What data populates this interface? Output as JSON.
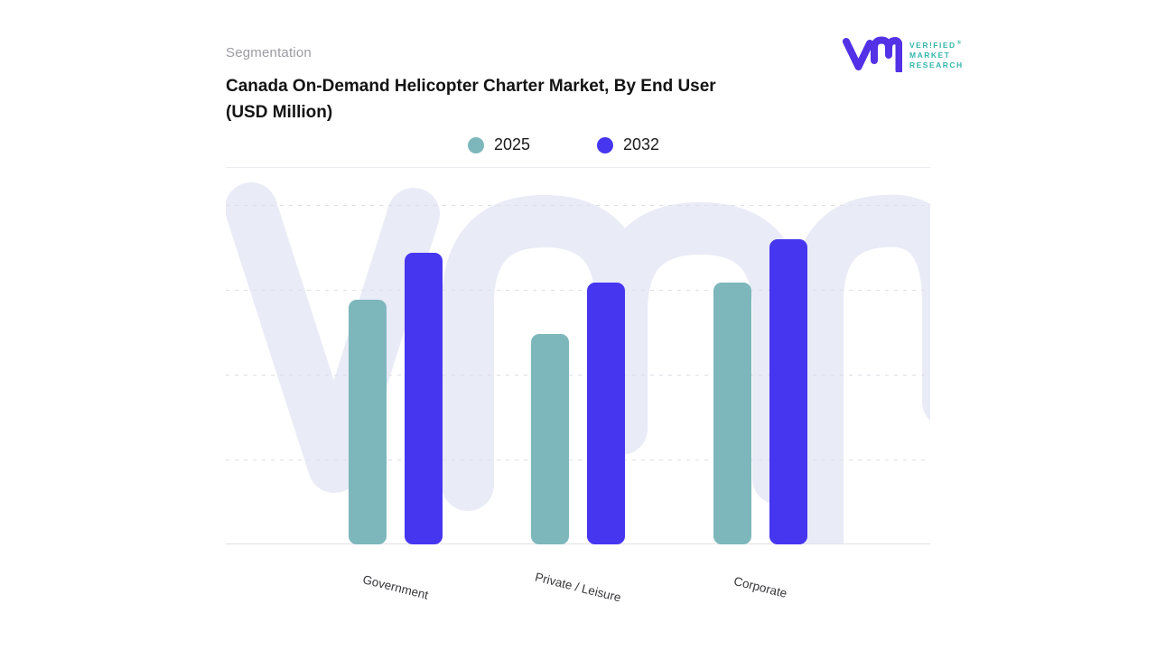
{
  "page": {
    "background": "#ffffff"
  },
  "header": {
    "eyebrow": "Segmentation",
    "title_line1": "Canada On-Demand Helicopter Charter Market, By End User",
    "title_line2": "(USD Million)"
  },
  "logo": {
    "lines": [
      "VER!FIED",
      "MARKET",
      "RESEARCH"
    ],
    "registered_mark": "®",
    "monogram_color": "#5231e6",
    "text_color": "#35b6ab"
  },
  "watermark": {
    "text": "vmr",
    "color": "#e9ebf7"
  },
  "chart_data": {
    "type": "bar",
    "title": "Canada On-Demand Helicopter Charter Market, By End User (USD Million)",
    "categories": [
      "Government",
      "Private / Leisure",
      "Corporate"
    ],
    "series": [
      {
        "name": "2025",
        "color": "#7db7bc",
        "values": [
          72,
          62,
          77
        ]
      },
      {
        "name": "2032",
        "color": "#4636f0",
        "values": [
          86,
          77,
          90
        ]
      }
    ],
    "xlabel": "",
    "ylabel": "",
    "y_axis": {
      "min": 0,
      "max": 100,
      "tick_labels_visible": false,
      "gridline_values": [
        25,
        50,
        75,
        100
      ],
      "note": "No numeric tick labels are rendered; series values are estimated on a 0-100 relative scale from the dashed gridlines."
    },
    "legend_position": "top-center",
    "grid": "horizontal-dashed",
    "x_label_rotation_deg": 14
  }
}
